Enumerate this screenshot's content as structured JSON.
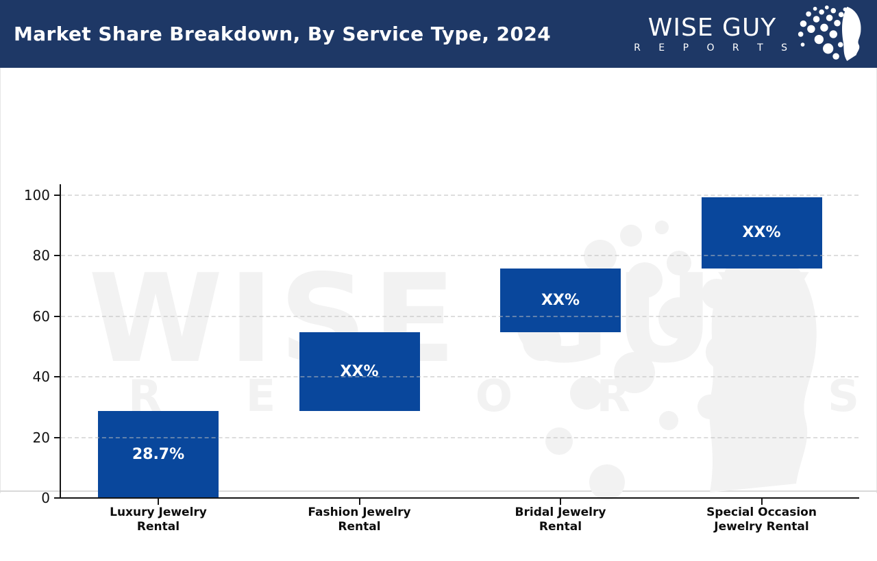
{
  "header": {
    "title": "Market Share Breakdown, By Service Type, 2024",
    "logo": {
      "name": "Wise Guy Reports",
      "line1": "WISE GUY",
      "line2": "R E P O R T S"
    }
  },
  "watermark": {
    "line1": "WISE GUY",
    "line2": "R E P O R T S"
  },
  "colors": {
    "header_bg": "#1e3866",
    "bar": "#09479c",
    "axis": "#141414",
    "grid": "#bdbdbd",
    "watermark": "#f2f2f2",
    "bar_label": "#ffffff"
  },
  "chart_data": {
    "type": "bar",
    "variant": "floating-waterfall",
    "title": "Market Share Breakdown, By Service Type, 2024",
    "categories": [
      [
        "Luxury Jewelry",
        "Rental"
      ],
      [
        "Fashion Jewelry",
        "Rental"
      ],
      [
        "Bridal Jewelry",
        "Rental"
      ],
      [
        "Special Occasion",
        "Jewelry Rental"
      ]
    ],
    "series": [
      {
        "name": "Market Share",
        "segments": [
          {
            "start": 0,
            "end": 28.7,
            "label": "28.7%"
          },
          {
            "start": 28.7,
            "end": 54.7,
            "label": "XX%"
          },
          {
            "start": 54.7,
            "end": 75.9,
            "label": "XX%"
          },
          {
            "start": 75.9,
            "end": 99.4,
            "label": "XX%"
          }
        ]
      }
    ],
    "yticks": [
      0,
      20,
      40,
      60,
      80,
      100
    ],
    "ylim": [
      0,
      103.6
    ],
    "xlabel": "",
    "ylabel": "",
    "grid": "horizontal-dashed",
    "legend": "none"
  }
}
